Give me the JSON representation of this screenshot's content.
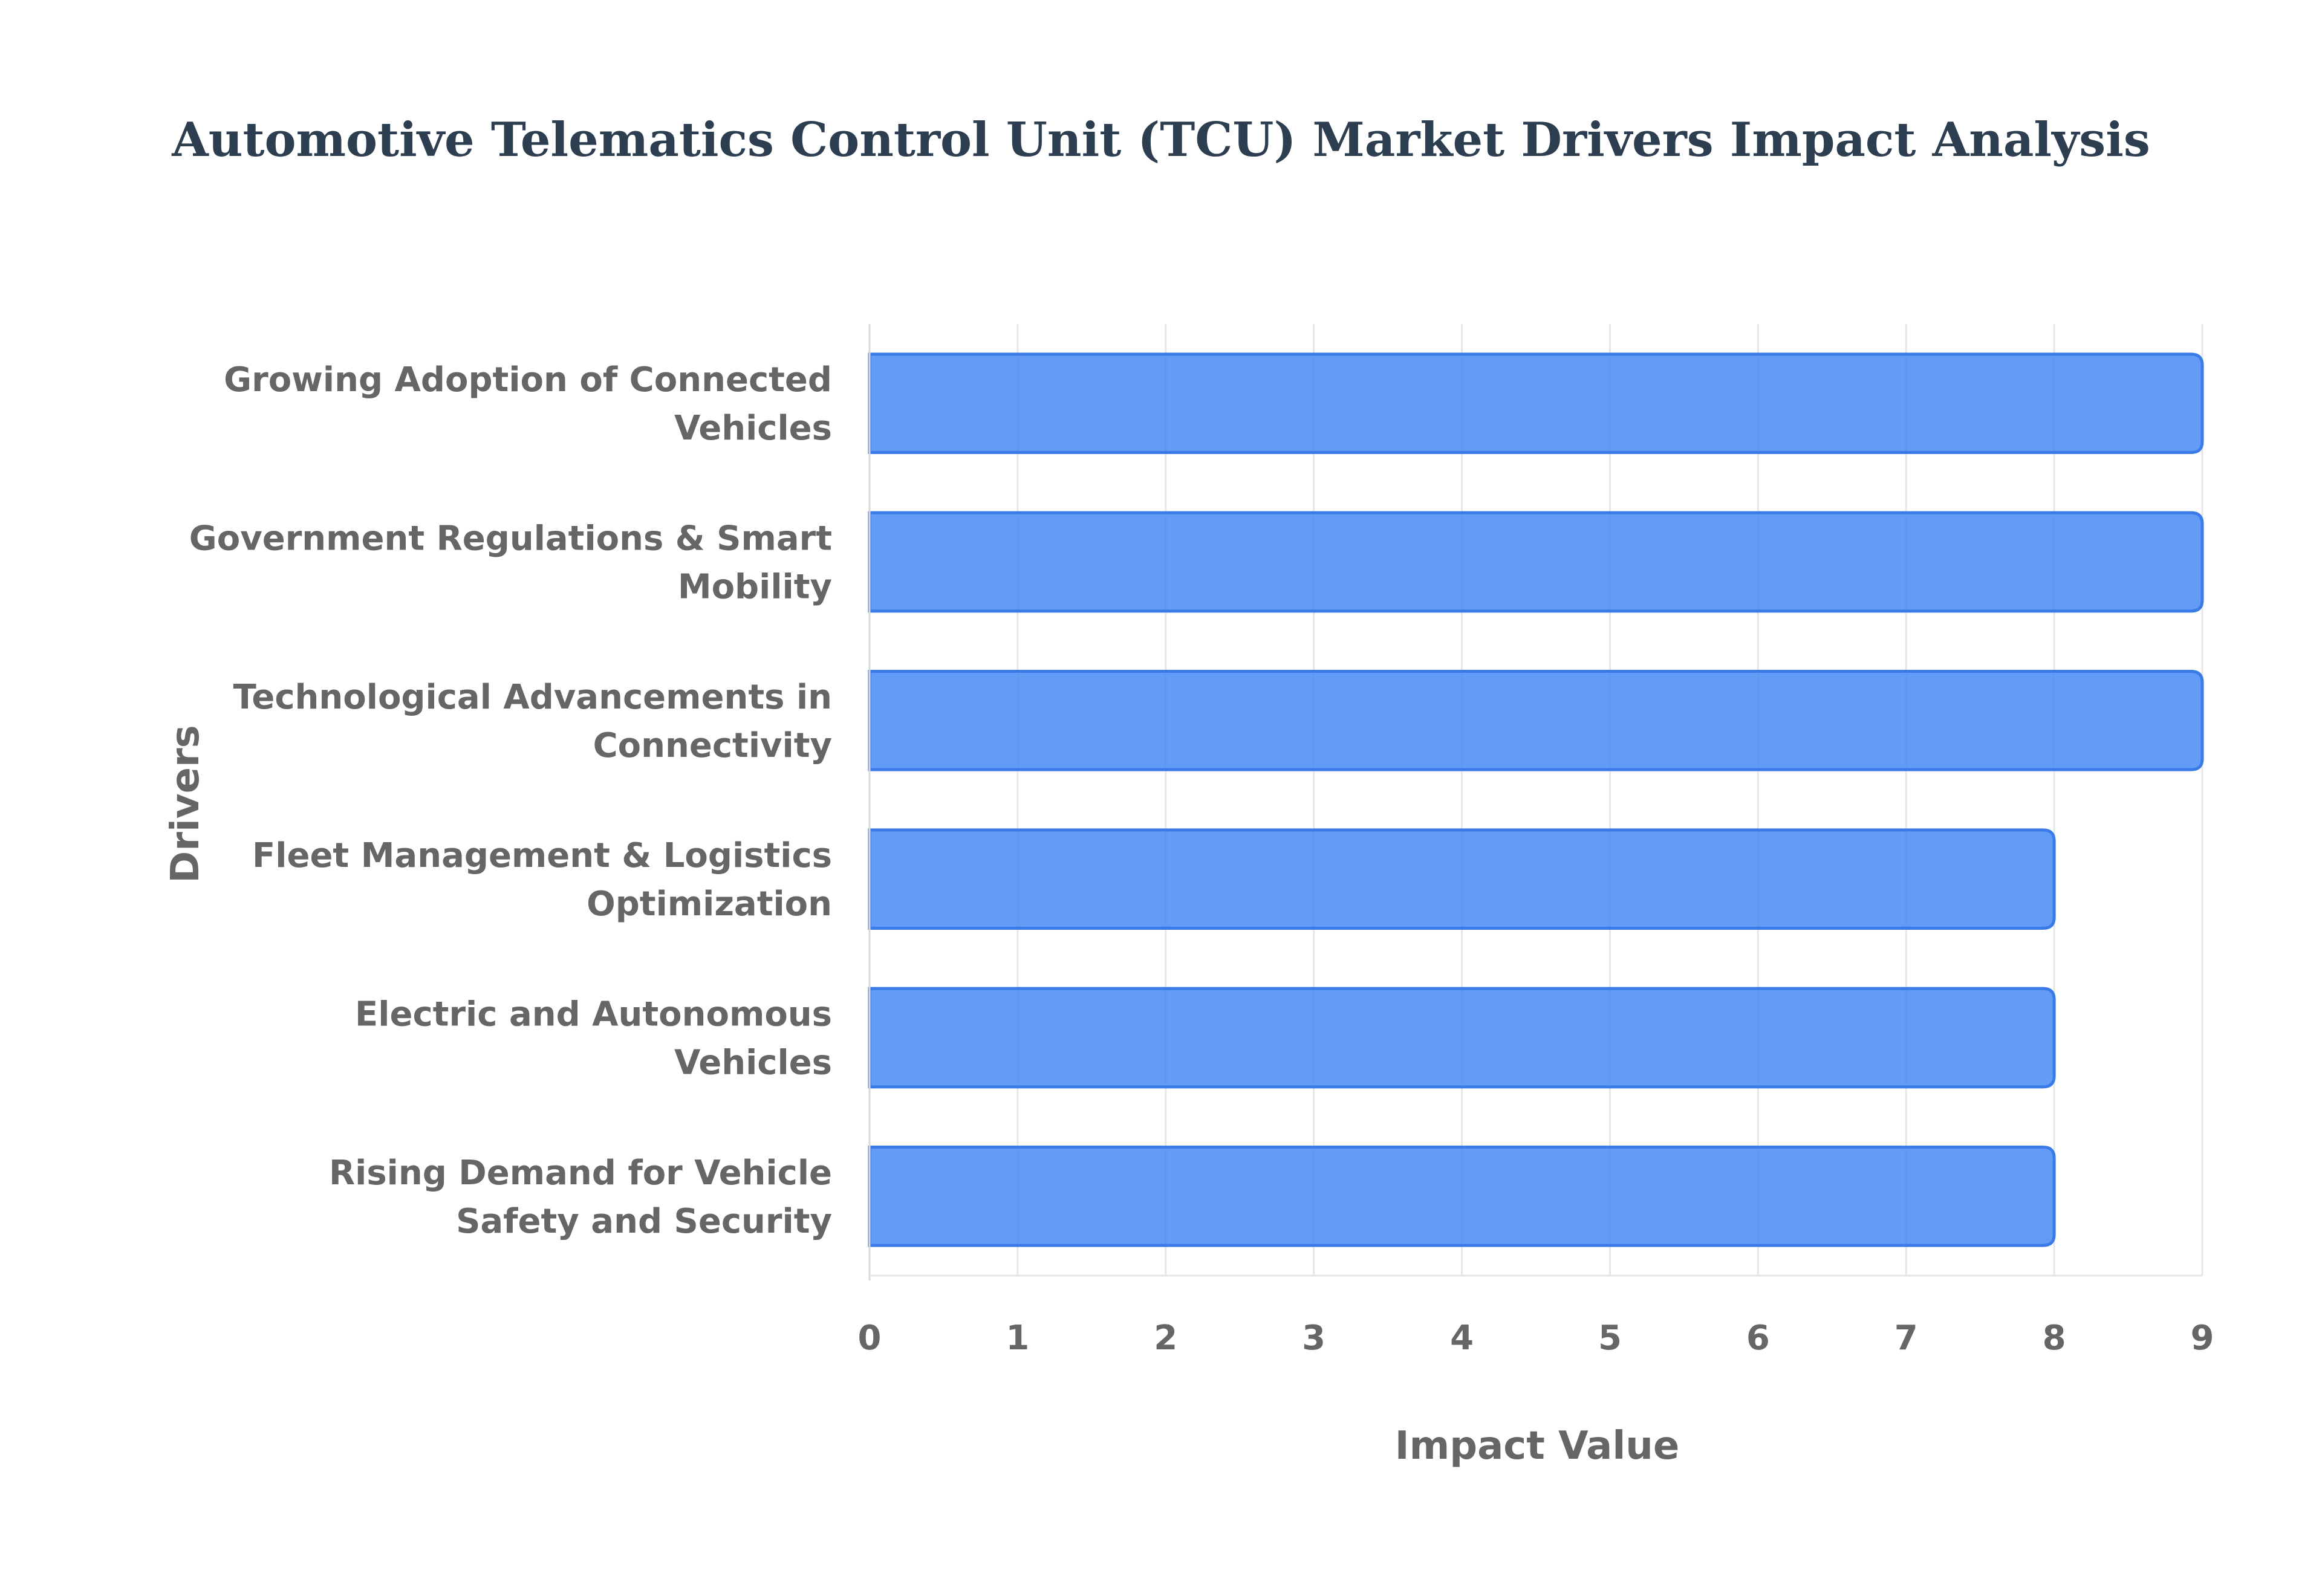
{
  "chart_data": {
    "type": "bar",
    "orientation": "horizontal",
    "title": "Automotive Telematics Control Unit (TCU) Market Drivers Impact Analysis",
    "xlabel": "Impact Value",
    "ylabel": "Drivers",
    "categories": [
      "Growing Adoption of Connected Vehicles",
      "Government Regulations & Smart Mobility",
      "Technological Advancements in Connectivity",
      "Fleet Management & Logistics Optimization",
      "Electric and Autonomous Vehicles",
      "Rising Demand for Vehicle Safety and Security"
    ],
    "category_lines": [
      [
        "Growing Adoption of Connected",
        "Vehicles"
      ],
      [
        "Government Regulations & Smart",
        "Mobility"
      ],
      [
        "Technological Advancements in",
        "Connectivity"
      ],
      [
        "Fleet Management & Logistics",
        "Optimization"
      ],
      [
        "Electric and Autonomous",
        "Vehicles"
      ],
      [
        "Rising Demand for Vehicle",
        "Safety and Security"
      ]
    ],
    "values": [
      9,
      9,
      9,
      8,
      8,
      8
    ],
    "xlim": [
      0,
      9
    ],
    "xticks": [
      "0",
      "1",
      "2",
      "3",
      "4",
      "5",
      "6",
      "7",
      "8",
      "9"
    ],
    "grid": true,
    "legend": "none",
    "colors": {
      "bar_fill": "#4186f4",
      "bar_border": "#3a7be8",
      "title": "#2c3e50",
      "labels": "#666666"
    }
  }
}
